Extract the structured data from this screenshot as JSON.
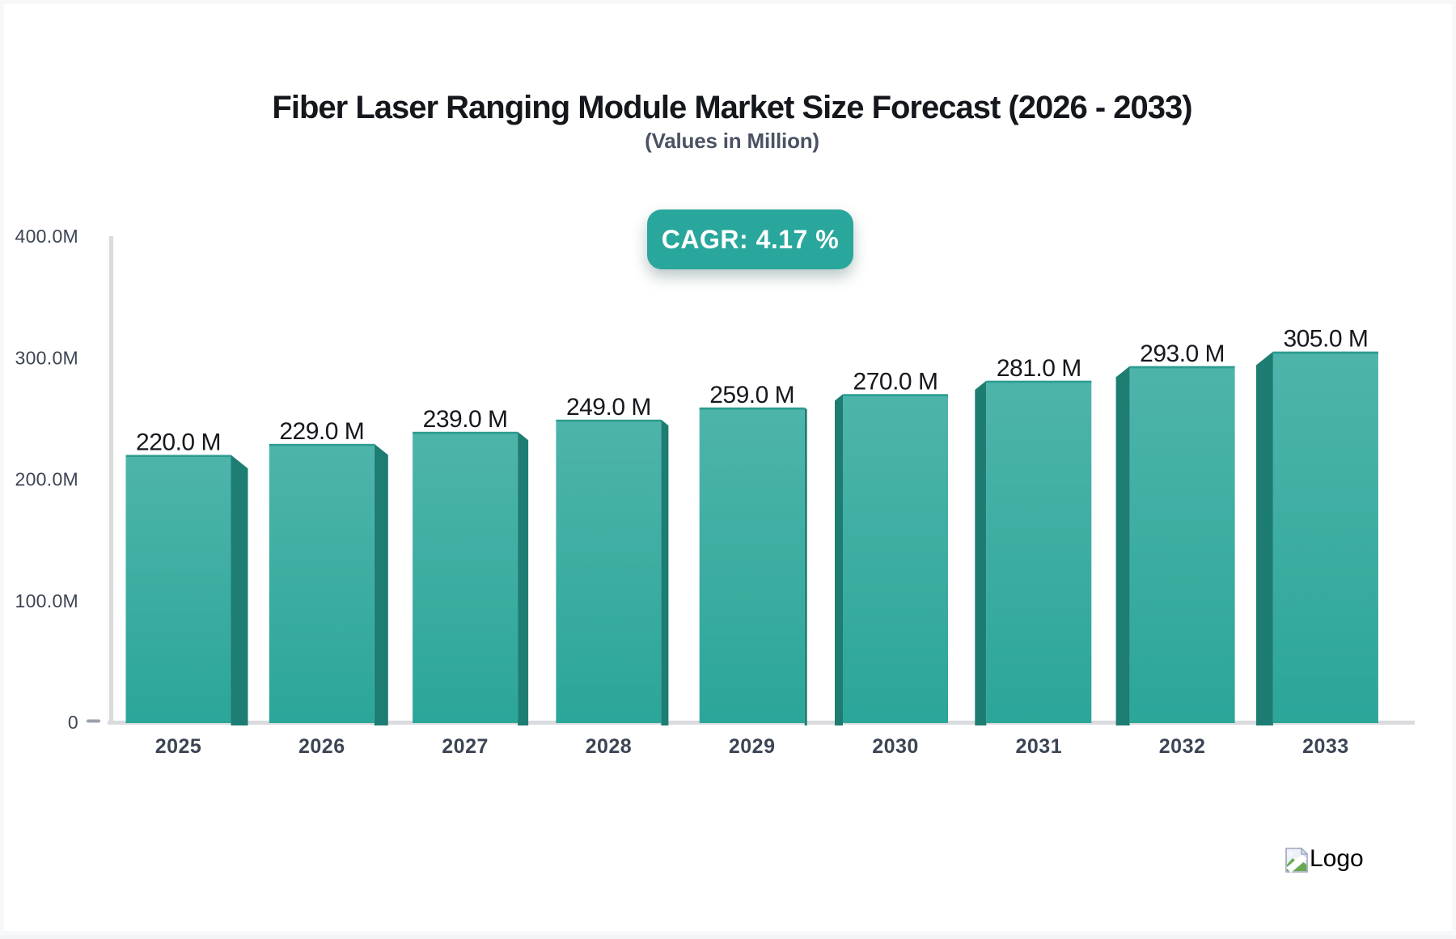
{
  "page": {
    "background": "#f7f8fa",
    "card_background": "#ffffff"
  },
  "header": {
    "title": "Fiber Laser Ranging Module Market Size Forecast (2026 - 2033)",
    "subtitle": "(Values in Million)"
  },
  "badge": {
    "label": "CAGR: 4.17 %",
    "background": "#2aa79c",
    "text_color": "#ffffff"
  },
  "logo": {
    "alt_text": "Logo",
    "icon": "broken-image-icon"
  },
  "chart_data": {
    "type": "bar",
    "title": "Fiber Laser Ranging Module Market Size Forecast (2026 - 2033)",
    "subtitle": "(Values in Million)",
    "unit": "Million",
    "categories": [
      "2025",
      "2026",
      "2027",
      "2028",
      "2029",
      "2030",
      "2031",
      "2032",
      "2033"
    ],
    "values": [
      220,
      229,
      239,
      249,
      259,
      270,
      281,
      293,
      305
    ],
    "bar_labels": [
      "220.0 M",
      "229.0 M",
      "239.0 M",
      "249.0 M",
      "259.0 M",
      "270.0 M",
      "281.0 M",
      "293.0 M",
      "305.0 M"
    ],
    "y_ticks": [
      {
        "value": 400,
        "label": "400.0M"
      },
      {
        "value": 300,
        "label": "300.0M"
      },
      {
        "value": 200,
        "label": "200.0M"
      },
      {
        "value": 100,
        "label": "100.0M"
      },
      {
        "value": 0,
        "label": "0"
      }
    ],
    "ylim": [
      0,
      400
    ],
    "xlabel": "",
    "ylabel": "",
    "grid": false,
    "legend": false,
    "colors": {
      "bar_face_top": "#4eb4ab",
      "bar_face_bottom": "#2ba699",
      "bar_top_edge": "#2d9c90",
      "bar_side": "#1e7d72",
      "axis_line": "#d9dbdf",
      "zero_tick": "#9ba1ab",
      "tick_label": "#3c4554",
      "value_label": "#15181d"
    }
  }
}
